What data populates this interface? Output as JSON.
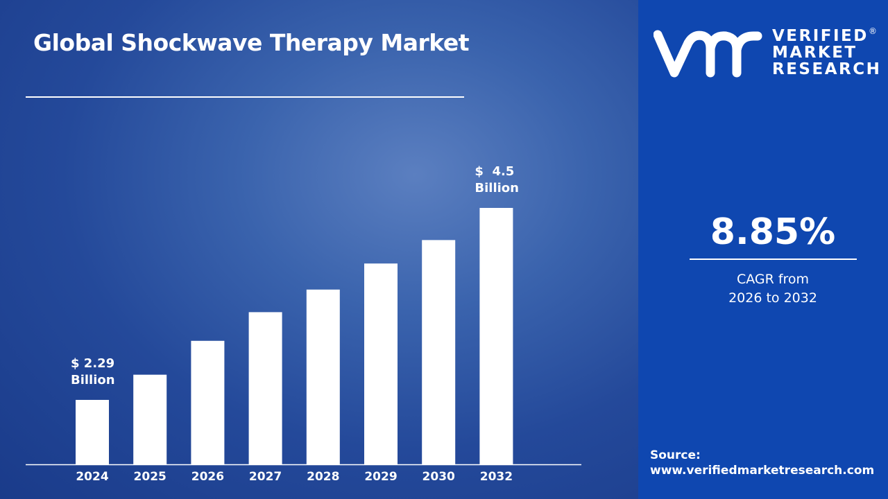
{
  "title": "Global Shockwave Therapy Market",
  "brand": {
    "line1": "VERIFIED",
    "line2": "MARKET",
    "line3": "RESEARCH",
    "mark": "vmr",
    "registered": "®"
  },
  "cagr": {
    "value": "8.85%",
    "desc_line1": "CAGR from",
    "desc_line2": "2026 to 2032"
  },
  "source": {
    "label": "Source:",
    "url": "www.verifiedmarketresearch.com"
  },
  "colors": {
    "right_panel": "#0f47b0",
    "left_panel": "#24499a",
    "bars": "#ffffff"
  },
  "chart_data": {
    "type": "bar",
    "title": "Global Shockwave Therapy Market",
    "categories": [
      "2024",
      "2025",
      "2026",
      "2027",
      "2028",
      "2029",
      "2030",
      "2032"
    ],
    "values": [
      2.29,
      2.58,
      2.97,
      3.3,
      3.56,
      3.86,
      4.13,
      4.5
    ],
    "unit": "USD Billion",
    "data_labels": [
      {
        "category": "2024",
        "line1": "$ 2.29",
        "line2": "Billion"
      },
      {
        "category": "2032",
        "line1": "$  4.5",
        "line2": "Billion"
      }
    ],
    "grid": false,
    "legend": "none"
  }
}
